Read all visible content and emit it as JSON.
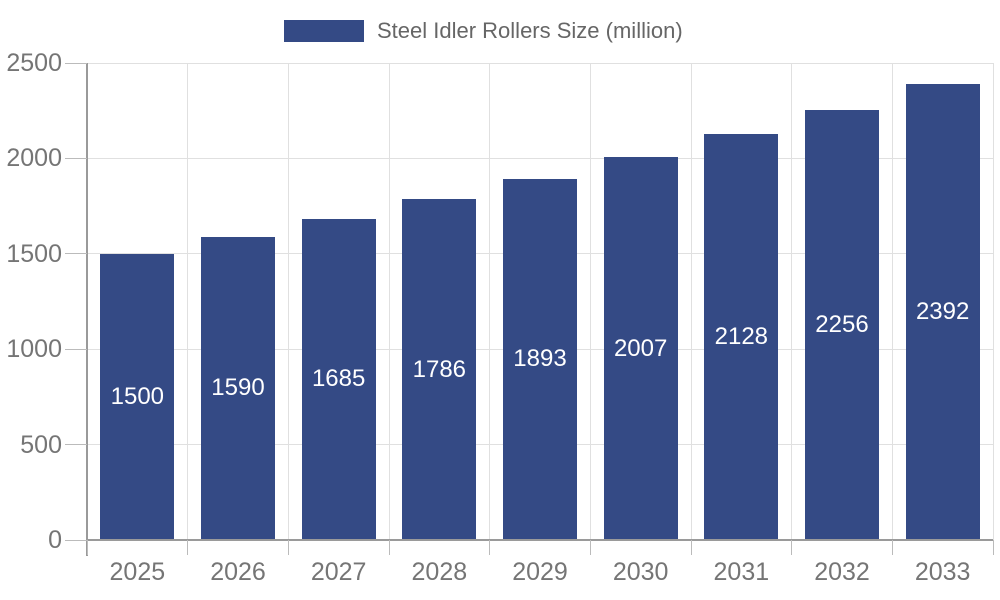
{
  "legend": {
    "label": "Steel Idler Rollers Size (million)"
  },
  "chart_data": {
    "type": "bar",
    "title": "",
    "series_name": "Steel Idler Rollers Size (million)",
    "categories": [
      "2025",
      "2026",
      "2027",
      "2028",
      "2029",
      "2030",
      "2031",
      "2032",
      "2033"
    ],
    "values": [
      1500,
      1590,
      1685,
      1786,
      1893,
      2007,
      2128,
      2256,
      2392
    ],
    "xlabel": "",
    "ylabel": "",
    "ylim": [
      0,
      2500
    ],
    "y_ticks": [
      0,
      500,
      1000,
      1500,
      2000,
      2500
    ],
    "grid": true,
    "legend_position": "top-center",
    "value_labels": "inside-center"
  },
  "colors": {
    "bar": "#344A85",
    "bar_label": "#FFFFFF",
    "legend_text": "#666666",
    "axis_line": "#9A9A9A",
    "tick": "#BBBBBB",
    "gridline": "#E0E0E0",
    "axis_label": "#757575",
    "background": "#FFFFFF"
  }
}
